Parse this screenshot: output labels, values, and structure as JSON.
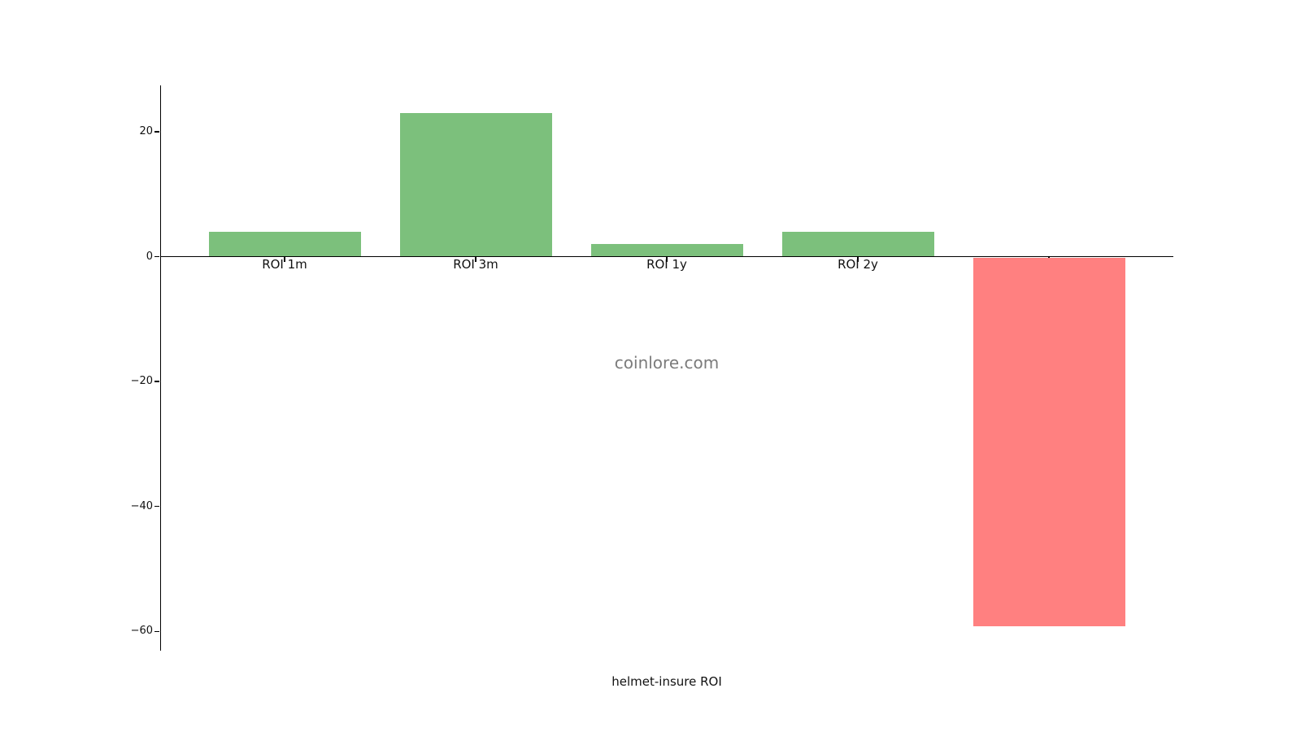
{
  "chart_data": {
    "type": "bar",
    "title": "",
    "xlabel": "helmet-insure ROI",
    "ylabel": "",
    "categories": [
      "ROI 1m",
      "ROI 3m",
      "ROI 1y",
      "ROI 2y",
      ""
    ],
    "values": [
      4,
      23,
      2,
      4,
      -59
    ],
    "bar_colors": [
      "#7cc07c",
      "#7cc07c",
      "#7cc07c",
      "#7cc07c",
      "#ff8080"
    ],
    "positive_color": "#7cc07c",
    "negative_color": "#ff8080",
    "yticks": [
      20,
      0,
      -20,
      -40,
      -60
    ],
    "ylim": [
      -63.1,
      27.1
    ],
    "grid": false,
    "legend": false,
    "axis_color": "#000000",
    "tick_label_color": "#111111"
  },
  "watermark": {
    "text": "coinlore.com",
    "color": "#7b7b7b"
  }
}
